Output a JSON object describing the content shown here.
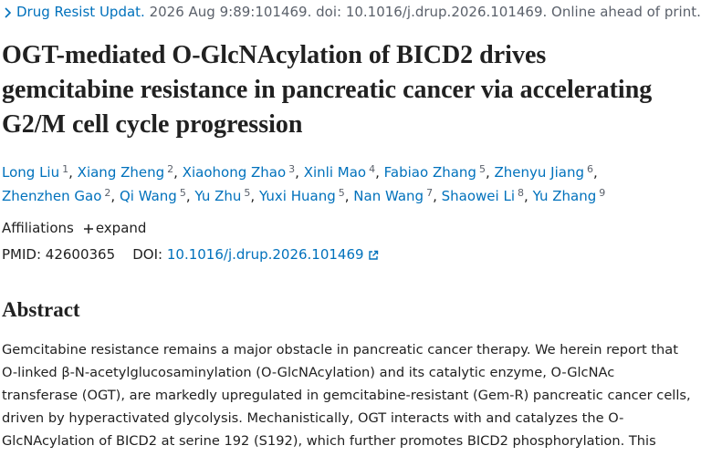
{
  "citation": {
    "journal": "Drug Resist Updat.",
    "details": "2026 Aug 9:89:101469. doi: 10.1016/j.drup.2026.101469. Online ahead of print."
  },
  "title": "OGT-mediated O-GlcNAcylation of BICD2 drives gemcitabine resistance in pancreatic cancer via accelerating G2/M cell cycle progression",
  "authors_separator": ",",
  "authors": [
    {
      "name": "Long Liu",
      "affiliation": 1
    },
    {
      "name": "Xiang Zheng",
      "affiliation": 2
    },
    {
      "name": "Xiaohong Zhao",
      "affiliation": 3
    },
    {
      "name": "Xinli Mao",
      "affiliation": 4
    },
    {
      "name": "Fabiao Zhang",
      "affiliation": 5
    },
    {
      "name": "Zhenyu Jiang",
      "affiliation": 6
    },
    {
      "name": "Zhenzhen Gao",
      "affiliation": 2
    },
    {
      "name": "Qi Wang",
      "affiliation": 5
    },
    {
      "name": "Yu Zhu",
      "affiliation": 5
    },
    {
      "name": "Yuxi Huang",
      "affiliation": 5
    },
    {
      "name": "Nan Wang",
      "affiliation": 7
    },
    {
      "name": "Shaowei Li",
      "affiliation": 8
    },
    {
      "name": "Yu Zhang",
      "affiliation": 9
    }
  ],
  "affiliations": {
    "label": "Affiliations",
    "toggle": "expand"
  },
  "identifiers": {
    "pmid_label": "PMID:",
    "pmid": "42600365",
    "doi_label": "DOI:",
    "doi": "10.1016/j.drup.2026.101469"
  },
  "abstract": {
    "heading": "Abstract",
    "lines": [
      "Gemcitabine resistance remains a major obstacle in pancreatic cancer therapy. We herein report that",
      "O-linked β-N-acetylglucosaminylation (O-GlcNAcylation) and its catalytic enzyme, O-GlcNAc",
      "transferase (OGT), are markedly upregulated in gemcitabine-resistant (Gem-R) pancreatic cancer cells,",
      "driven by hyperactivated glycolysis. Mechanistically, OGT interacts with and catalyzes the O-",
      "GlcNAcylation of BICD2 at serine 192 (S192), which further promotes BICD2 phosphorylation. This"
    ]
  }
}
